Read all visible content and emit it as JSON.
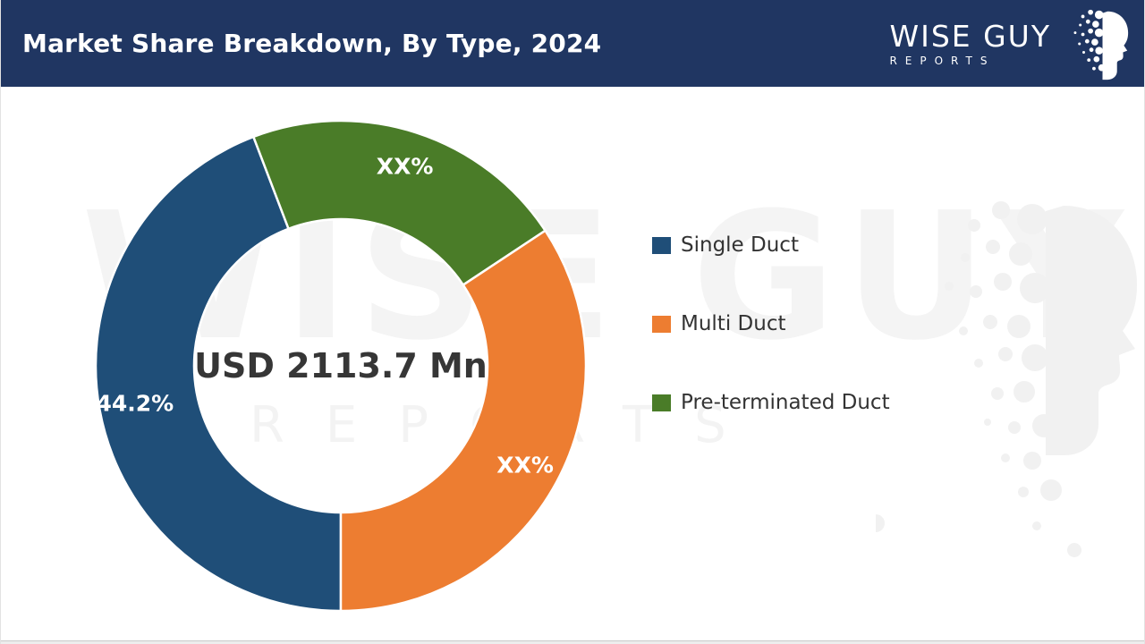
{
  "header": {
    "title": "Market Share Breakdown, By Type, 2024",
    "logo": {
      "line1": "WISE GUY",
      "line2": "REPORTS"
    }
  },
  "watermark": {
    "line1": "WISE GUY",
    "line2": "REPORTS"
  },
  "chart_data": {
    "type": "donut",
    "title": "Market Share Breakdown, By Type, 2024",
    "center_label": "USD 2113.7 Mn",
    "start_angle_deg_from_top_cw": 180,
    "direction": "clockwise",
    "legend_position": "right",
    "segments": [
      {
        "name": "Single Duct",
        "color": "#1f4e78",
        "pct": 44.2,
        "label": "44.2%"
      },
      {
        "name": "Pre-terminated Duct",
        "color": "#4a7c28",
        "pct": 21.5,
        "label": "XX%"
      },
      {
        "name": "Multi Duct",
        "color": "#ed7d31",
        "pct": 34.3,
        "label": "XX%"
      }
    ]
  },
  "legend": {
    "items": [
      {
        "label": "Single Duct",
        "color": "#1f4e78"
      },
      {
        "label": "Multi Duct",
        "color": "#ed7d31"
      },
      {
        "label": "Pre-terminated Duct",
        "color": "#4a7c28"
      }
    ]
  },
  "colors": {
    "header_bg": "#203662",
    "blue": "#1f4e78",
    "orange": "#ed7d31",
    "green": "#4a7c28",
    "center_text": "#363636",
    "watermark": "#f4f4f4",
    "separator": "#ffffff"
  }
}
